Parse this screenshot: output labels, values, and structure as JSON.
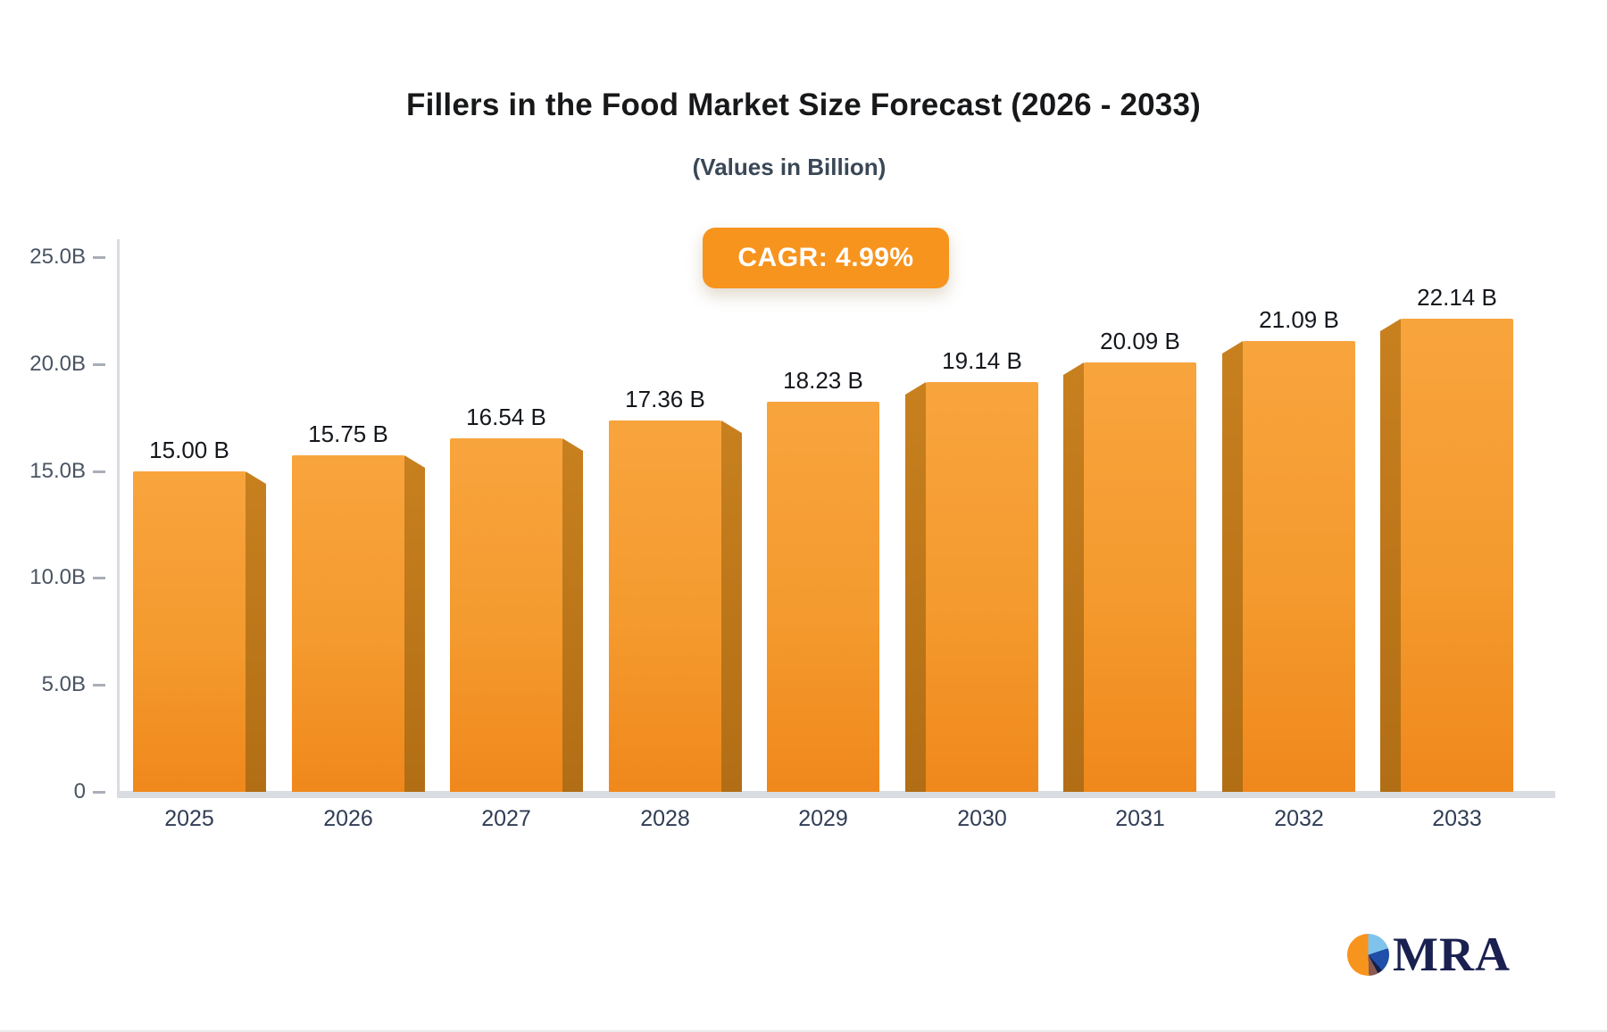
{
  "header": {
    "title": "Fillers in the Food Market Size Forecast (2026 - 2033)",
    "subtitle": "(Values in Billion)",
    "cagr_label": "CAGR: 4.99%"
  },
  "logo": {
    "text": "MRA",
    "icon": "pie-chart-logo-icon"
  },
  "colors": {
    "bar_front_top": "#f8a43d",
    "bar_front_bottom": "#f0881c",
    "bar_side": "#be771b",
    "badge": "#f7941e",
    "axis": "#d9dce1",
    "y_label": "#4a5462",
    "x_label": "#303d55",
    "value_label": "#14171c",
    "logo_navy": "#1a2150"
  },
  "chart_data": {
    "type": "bar",
    "title": "Fillers in the Food Market Size Forecast (2026 - 2033)",
    "subtitle": "(Values in Billion)",
    "cagr": "4.99%",
    "categories": [
      "2025",
      "2026",
      "2027",
      "2028",
      "2029",
      "2030",
      "2031",
      "2032",
      "2033"
    ],
    "values": [
      15.0,
      15.75,
      16.54,
      17.36,
      18.23,
      19.14,
      20.09,
      21.09,
      22.14
    ],
    "value_labels": [
      "15.00 B",
      "15.75 B",
      "16.54 B",
      "17.36 B",
      "18.23 B",
      "19.14 B",
      "20.09 B",
      "21.09 B",
      "22.14 B"
    ],
    "xlabel": "",
    "ylabel": "",
    "ylim": [
      0,
      25
    ],
    "yticks": [
      {
        "label": "25.0B",
        "value": 25
      },
      {
        "label": "20.0B",
        "value": 20
      },
      {
        "label": "15.0B",
        "value": 15
      },
      {
        "label": "10.0B",
        "value": 10
      },
      {
        "label": "5.0B",
        "value": 5
      },
      {
        "label": "0",
        "value": 0
      }
    ],
    "grid": false,
    "legend": false
  }
}
